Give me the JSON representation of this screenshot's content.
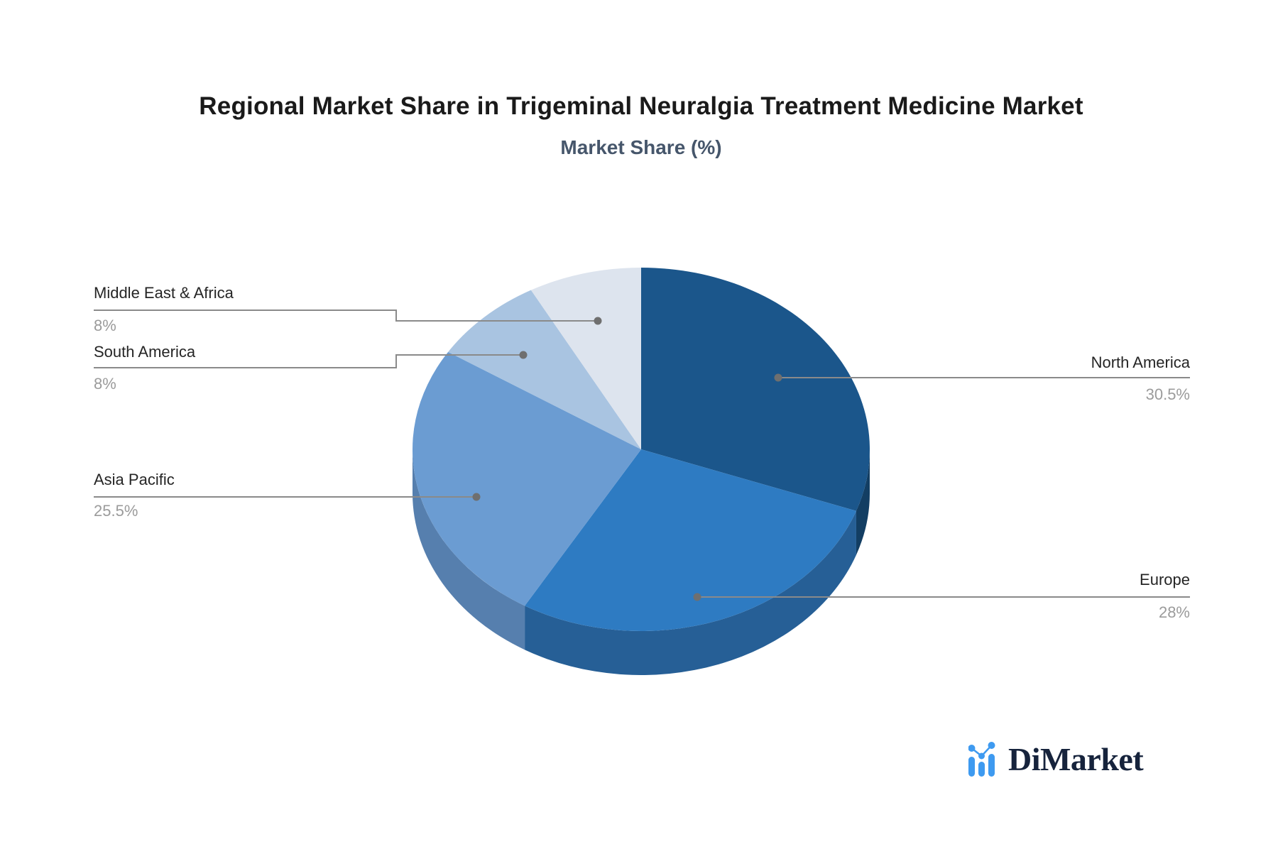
{
  "header": {
    "title": "Regional Market Share in Trigeminal Neuralgia Treatment Medicine Market",
    "subtitle": "Market Share (%)"
  },
  "brand": {
    "name": "DiMarket",
    "icon": "bar-chart-logo-icon",
    "icon_color": "#3e9af0",
    "text_color": "#16233c"
  },
  "chart_data": {
    "type": "pie",
    "title": "Regional Market Share in Trigeminal Neuralgia Treatment Medicine Market",
    "subtitle": "Market Share (%)",
    "unit": "%",
    "effect_3d": true,
    "direction": "clockwise",
    "start_angle_deg": 0,
    "legend_position": "none",
    "slices": [
      {
        "name": "North America",
        "value": 30.5,
        "value_label": "30.5%",
        "color": "#1b568b",
        "side_color": "#133e63",
        "label_side": "right"
      },
      {
        "name": "Europe",
        "value": 28,
        "value_label": "28%",
        "color": "#2e7bc2",
        "side_color": "#265f96",
        "label_side": "right"
      },
      {
        "name": "Asia Pacific",
        "value": 25.5,
        "value_label": "25.5%",
        "color": "#6b9cd2",
        "side_color": "#567fae",
        "label_side": "left"
      },
      {
        "name": "South America",
        "value": 8,
        "value_label": "8%",
        "color": "#a9c4e1",
        "side_color": "#8aa6c4",
        "label_side": "left"
      },
      {
        "name": "Middle East & Africa",
        "value": 8,
        "value_label": "8%",
        "color": "#dde4ee",
        "side_color": "#b9c3d2",
        "label_side": "left"
      }
    ],
    "leader_line_color": "#8a8a8a",
    "leader_dot_color": "#6f6f6f",
    "label_name_color": "#252525",
    "label_value_color": "#9b9b9b"
  }
}
